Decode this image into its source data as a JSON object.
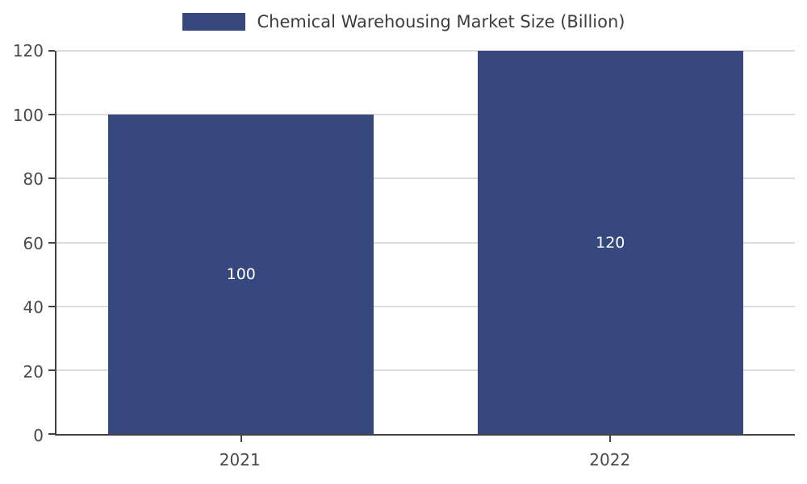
{
  "chart_data": {
    "type": "bar",
    "legend": [
      "Chemical Warehousing Market Size (Billion)"
    ],
    "legend_position": "top",
    "categories": [
      "2021",
      "2022"
    ],
    "values": [
      100,
      120
    ],
    "value_labels": [
      "100",
      "120"
    ],
    "xlabel": "",
    "ylabel": "",
    "ylim": [
      0,
      120
    ],
    "yticks": [
      0,
      20,
      40,
      60,
      80,
      100,
      120
    ],
    "grid": true,
    "colors": {
      "bar": "#36487e",
      "value_label": "#ffffff"
    }
  }
}
